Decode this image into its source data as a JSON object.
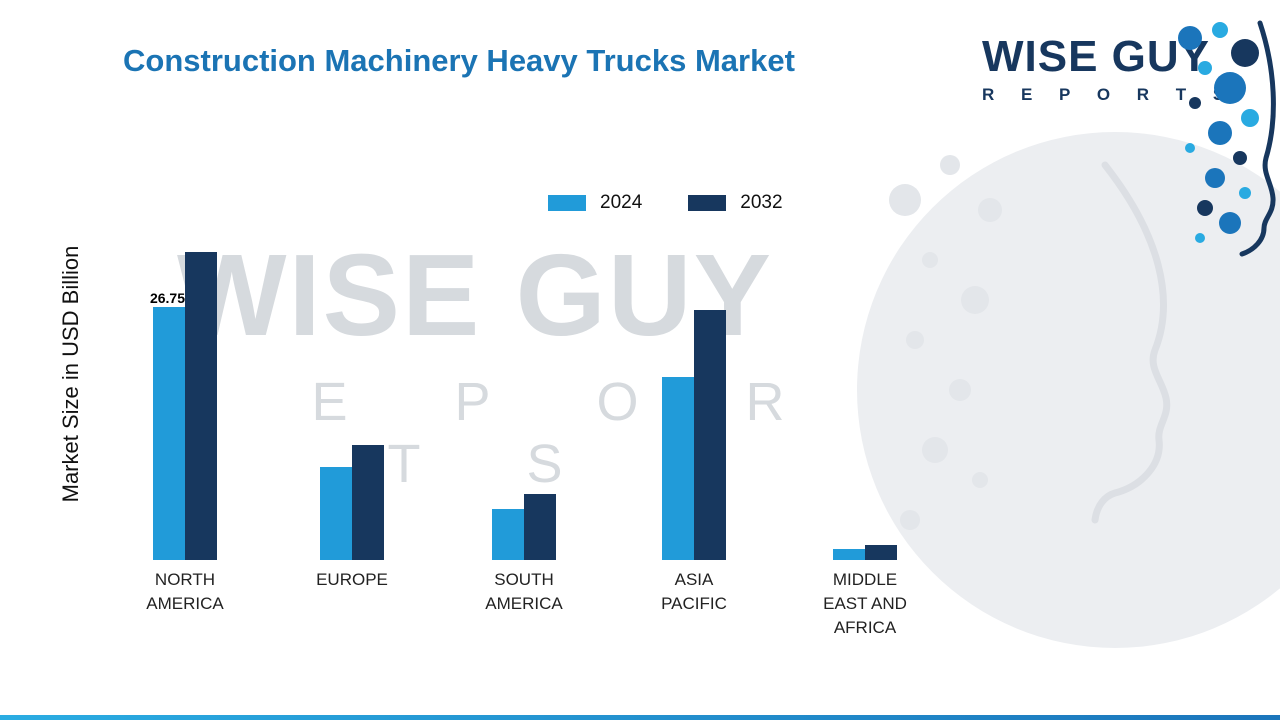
{
  "page": {
    "background": "#ffffff",
    "accent_colors": [
      "#2aace2",
      "#1b75bb"
    ],
    "title_color": "#1b74b4"
  },
  "logo": {
    "line1": "WISE GUY",
    "line2": "R E P O R T S",
    "color": "#17375e"
  },
  "watermark": {
    "line1": "WISE GUY",
    "line2": "R E P O R T S"
  },
  "chart_data": {
    "type": "bar",
    "title": "Construction Machinery Heavy Trucks Market",
    "ylabel": "Market Size in USD Billion",
    "xlabel": "",
    "ylim": [
      0,
      35
    ],
    "grid": false,
    "legend_position": "top",
    "categories": [
      "NORTH AMERICA",
      "EUROPE",
      "SOUTH AMERICA",
      "ASIA PACIFIC",
      "MIDDLE EAST AND AFRICA"
    ],
    "series": [
      {
        "name": "2024",
        "color": "#219bd9",
        "values": [
          26.75,
          9.8,
          5.4,
          19.3,
          1.2
        ]
      },
      {
        "name": "2032",
        "color": "#17375e",
        "values": [
          32.6,
          12.2,
          7.0,
          26.4,
          1.6
        ]
      }
    ],
    "annotations": [
      {
        "series": "2024",
        "category_index": 0,
        "text": "26.75"
      }
    ]
  }
}
